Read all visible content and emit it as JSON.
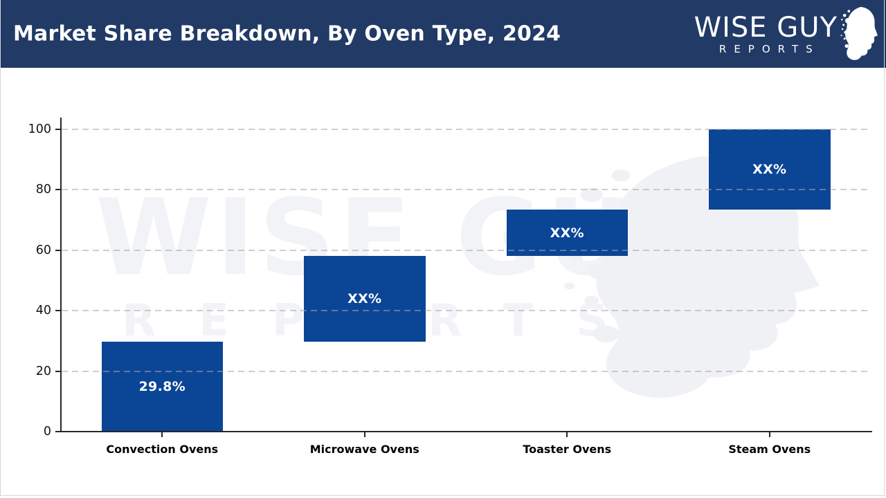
{
  "header": {
    "title": "Market Share Breakdown, By Oven Type, 2024",
    "bg_color": "#213a66",
    "logo": {
      "line1": "WISE GUY",
      "line2": "REPORTS"
    }
  },
  "watermark": {
    "line1": "WISE GUY",
    "line2": "REPORTS"
  },
  "chart_data": {
    "type": "bar",
    "subtype": "waterfall",
    "title": "Market Share Breakdown, By Oven Type, 2024",
    "xlabel": "",
    "ylabel": "",
    "categories": [
      "Convection Ovens",
      "Microwave Ovens",
      "Toaster Ovens",
      "Steam Ovens"
    ],
    "segments": [
      {
        "category": "Convection Ovens",
        "start": 0,
        "end": 29.8,
        "label": "29.8%"
      },
      {
        "category": "Microwave Ovens",
        "start": 29.8,
        "end": 58.1,
        "label": "XX%"
      },
      {
        "category": "Toaster Ovens",
        "start": 58.1,
        "end": 73.4,
        "label": "XX%"
      },
      {
        "category": "Steam Ovens",
        "start": 73.4,
        "end": 100,
        "label": "XX%"
      }
    ],
    "y_ticks": [
      0,
      20,
      40,
      60,
      80,
      100
    ],
    "ylim": [
      0,
      100
    ],
    "bar_color": "#0b4596",
    "grid": "horizontal-dashed-over-bars",
    "legend": "none",
    "axis_color": "#262626",
    "gridline_color": "#cfcfcf"
  }
}
